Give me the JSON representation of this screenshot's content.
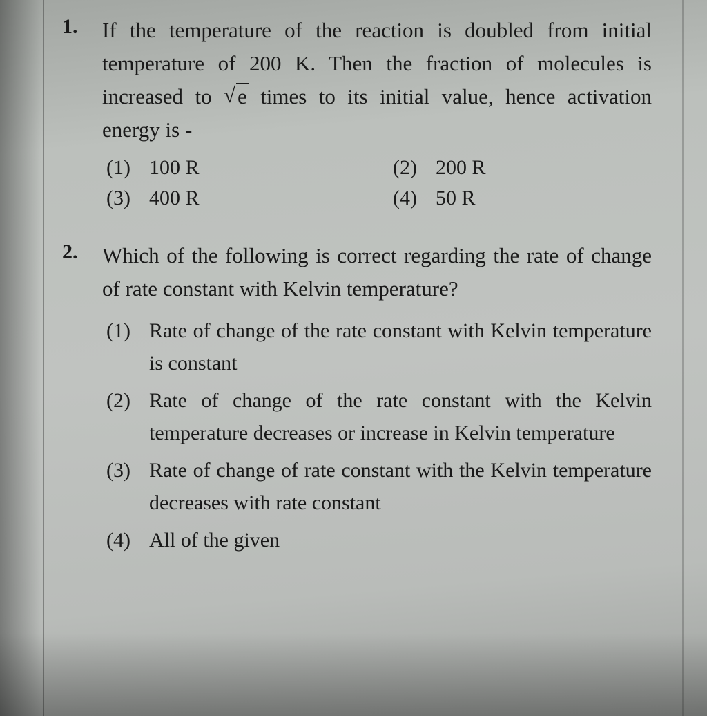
{
  "page": {
    "background_color": "#bcc0bc",
    "text_color": "#1a1a1a",
    "font_family": "Times New Roman",
    "stem_fontsize_pt": 23,
    "option_fontsize_pt": 22,
    "qnum_fontsize_pt": 22
  },
  "questions": [
    {
      "number": "1.",
      "stem_pre": "If the temperature of the reaction is doubled from initial temperature of 200 K. Then the fraction of molecules is increased to ",
      "stem_radicand": "e",
      "stem_post": " times to its initial value, hence activation energy is -",
      "layout": "grid",
      "options": [
        {
          "num": "(1)",
          "text": "100 R"
        },
        {
          "num": "(2)",
          "text": "200 R"
        },
        {
          "num": "(3)",
          "text": "400 R"
        },
        {
          "num": "(4)",
          "text": "50 R"
        }
      ]
    },
    {
      "number": "2.",
      "stem": "Which of the following is correct regarding the rate of change of rate constant with Kelvin temperature?",
      "layout": "list",
      "options": [
        {
          "num": "(1)",
          "text": "Rate of change of the rate constant with Kelvin temperature is constant"
        },
        {
          "num": "(2)",
          "text": "Rate of change of the rate constant with the Kelvin temperature decreases or increase in Kelvin temperature"
        },
        {
          "num": "(3)",
          "text": "Rate of change of rate constant with the Kelvin temperature decreases with rate constant"
        },
        {
          "num": "(4)",
          "text": "All of the given"
        }
      ]
    }
  ]
}
